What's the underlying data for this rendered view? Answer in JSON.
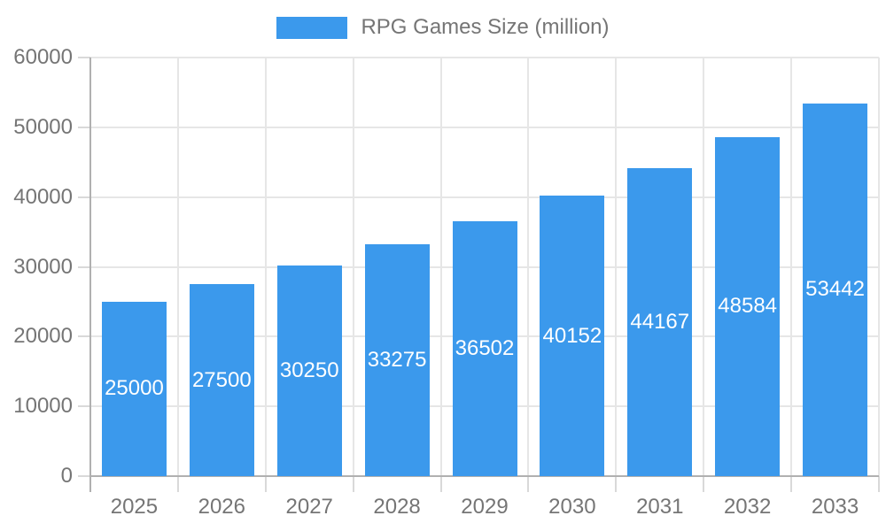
{
  "chart_data": {
    "type": "bar",
    "legend": "RPG Games Size (million)",
    "legend_position": "top",
    "categories": [
      "2025",
      "2026",
      "2027",
      "2028",
      "2029",
      "2030",
      "2031",
      "2032",
      "2033"
    ],
    "series": [
      {
        "name": "RPG Games Size (million)",
        "values": [
          25000,
          27500,
          30250,
          33275,
          36502,
          40152,
          44167,
          48584,
          53442
        ]
      }
    ],
    "values": [
      25000,
      27500,
      30250,
      33275,
      36502,
      40152,
      44167,
      48584,
      53442
    ],
    "bar_labels": [
      "25000",
      "27500",
      "30250",
      "33275",
      "36502",
      "40152",
      "44167",
      "48584",
      "53442"
    ],
    "xlabel": "",
    "ylabel": "",
    "ylim": [
      0,
      60000
    ],
    "yticks": [
      0,
      10000,
      20000,
      30000,
      40000,
      50000,
      60000
    ],
    "grid": true,
    "colors": {
      "bar": "#3b99ec",
      "bar_value_text": "#ffffff",
      "axis_text": "#757575",
      "gridline": "#e6e6e6",
      "axis_line": "#b0b0b0",
      "tick": "#d9d9d9",
      "background": "#ffffff"
    }
  }
}
